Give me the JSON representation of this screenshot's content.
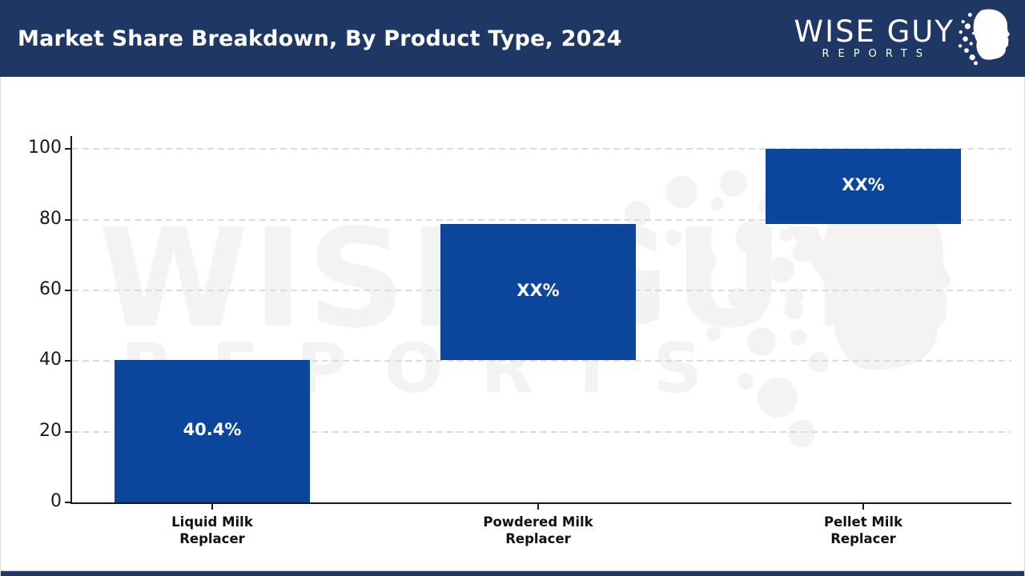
{
  "header": {
    "title": "Market Share Breakdown, By Product Type, 2024",
    "logo": {
      "brand_line1": "WISE GUY",
      "brand_line2": "REPORTS"
    }
  },
  "watermark": {
    "line1": "WISE GUY",
    "line2": "REPORTS"
  },
  "colors": {
    "header_bg": "#1f3765",
    "footer_bg": "#1f3765",
    "bar": "#0b459c",
    "grid": "#dcdcdc",
    "axis": "#1a1a1a",
    "value_text": "#ffffff",
    "watermark": "#f3f3f3"
  },
  "chart_data": {
    "type": "bar",
    "subtype": "waterfall-stacked",
    "title": "Market Share Breakdown, By Product Type, 2024",
    "xlabel": "",
    "ylabel": "",
    "ylim": [
      0,
      103.7
    ],
    "yticks": [
      0,
      20,
      40,
      60,
      80,
      100
    ],
    "grid": "horizontal-dashed",
    "legend": "none",
    "bar_color": "#0b459c",
    "categories": [
      "Liquid Milk Replacer",
      "Powdered Milk Replacer",
      "Pellet Milk Replacer"
    ],
    "bars": [
      {
        "category": [
          "Liquid Milk",
          "Replacer"
        ],
        "start": 0,
        "end": 40.4,
        "value_label": "40.4%"
      },
      {
        "category": [
          "Powdered Milk",
          "Replacer"
        ],
        "start": 40.4,
        "end": 78.8,
        "value_label": "XX%"
      },
      {
        "category": [
          "Pellet Milk",
          "Replacer"
        ],
        "start": 78.8,
        "end": 100,
        "value_label": "XX%"
      }
    ]
  }
}
